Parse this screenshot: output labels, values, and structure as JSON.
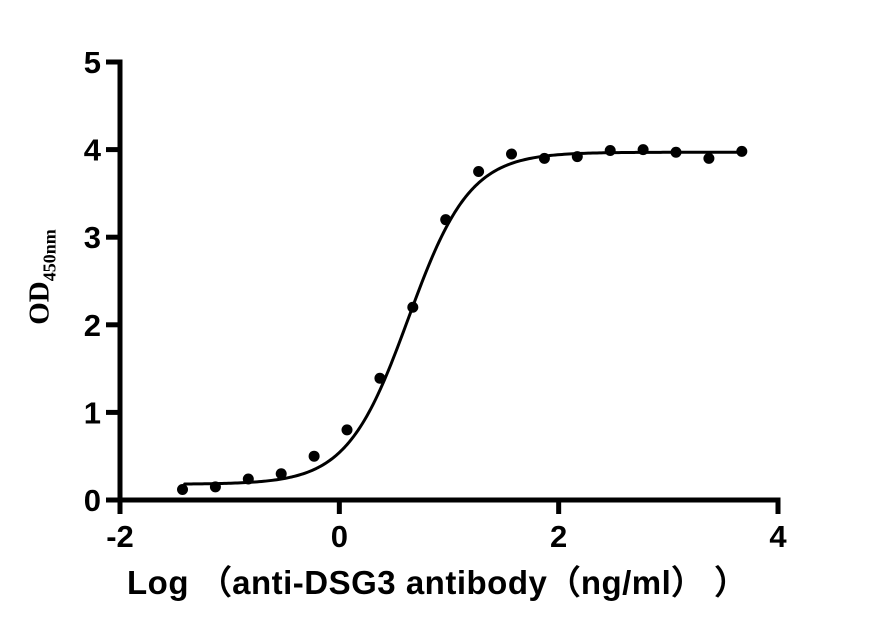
{
  "figure": {
    "background": "#ffffff",
    "ink_color": "#000000"
  },
  "chart_data": {
    "type": "scatter",
    "title": "",
    "xlabel": "Log （anti-DSG3 antibody（ng/ml） ）",
    "ylabel_main": "OD",
    "ylabel_sub": "450nm",
    "xlim": [
      -2,
      4
    ],
    "ylim": [
      0,
      5
    ],
    "x_ticks": [
      -2,
      0,
      2,
      4
    ],
    "y_ticks": [
      0,
      1,
      2,
      3,
      4,
      5
    ],
    "grid": false,
    "legend": null,
    "series": [
      {
        "name": "anti-DSG3 antibody",
        "marker": "filled-circle",
        "marker_color": "#000000",
        "x": [
          -1.43,
          -1.13,
          -0.83,
          -0.53,
          -0.23,
          0.07,
          0.37,
          0.67,
          0.97,
          1.27,
          1.57,
          1.87,
          2.17,
          2.47,
          2.77,
          3.07,
          3.37,
          3.67
        ],
        "y": [
          0.12,
          0.15,
          0.24,
          0.3,
          0.5,
          0.8,
          1.39,
          2.2,
          3.2,
          3.75,
          3.95,
          3.9,
          3.92,
          3.99,
          4.0,
          3.97,
          3.9,
          3.98
        ]
      }
    ],
    "fit_curve": {
      "model": "4PL-sigmoid",
      "bottom": 0.18,
      "top": 3.97,
      "log_ec50": 0.63,
      "hill": 1.55,
      "x_start": -1.41,
      "x_end": 3.67,
      "color": "#000000"
    }
  }
}
